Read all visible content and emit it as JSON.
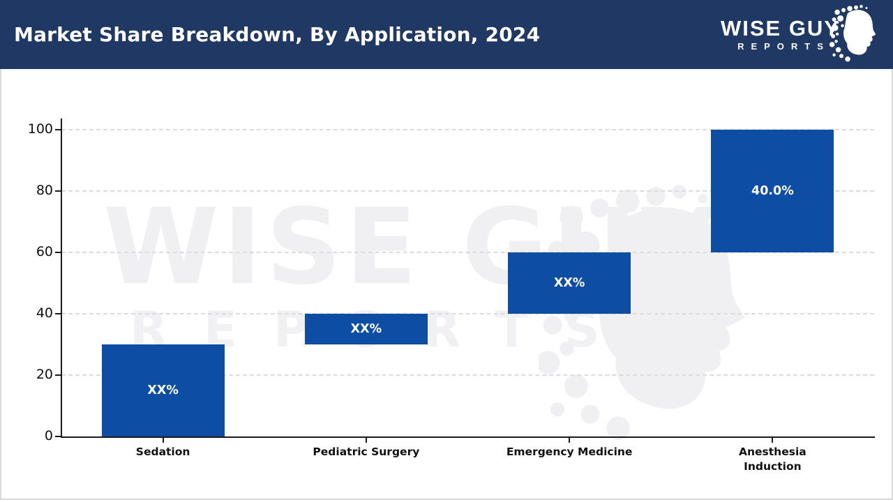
{
  "header": {
    "title": "Market Share Breakdown, By Application, 2024",
    "bg_color": "#1f3864",
    "logo": {
      "line1": "WISE GUY",
      "line2": "REPORTS"
    }
  },
  "watermark": {
    "line1": "WISE GUY",
    "line2": "REPORTS",
    "color": "#f0f0f3"
  },
  "chart_data": {
    "type": "bar",
    "subtype": "floating-range-waterfall",
    "title": "Market Share Breakdown, By Application, 2024",
    "categories": [
      "Sedation",
      "Pediatric Surgery",
      "Emergency Medicine",
      "Anesthesia Induction"
    ],
    "category_display_lines": [
      [
        "Sedation"
      ],
      [
        "Pediatric Surgery"
      ],
      [
        "Emergency Medicine"
      ],
      [
        "Anesthesia",
        "Induction"
      ]
    ],
    "series": [
      {
        "name": "Market Share (%)",
        "ranges": [
          [
            0,
            30
          ],
          [
            30,
            40
          ],
          [
            40,
            60
          ],
          [
            60,
            100
          ]
        ],
        "segment_sizes": [
          30,
          10,
          20,
          40
        ],
        "bar_labels": [
          "XX%",
          "XX%",
          "XX%",
          "40.0%"
        ]
      }
    ],
    "ylim": [
      0,
      100
    ],
    "yticks": [
      0,
      20,
      40,
      60,
      80,
      100
    ],
    "xlabel": "",
    "ylabel": "",
    "grid": "horizontal-dashed",
    "legend_position": "none",
    "bar_color": "#0d4da3",
    "bar_label_color": "#ffffff",
    "axis_color": "#1a1a1a",
    "grid_color": "#dcdcdc"
  }
}
